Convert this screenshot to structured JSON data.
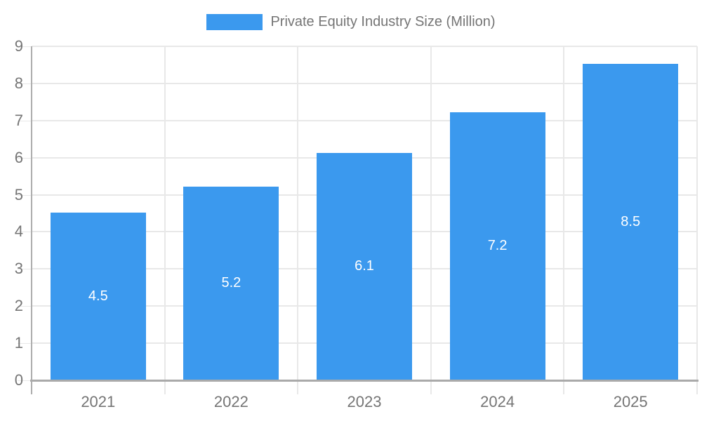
{
  "chart_data": {
    "type": "bar",
    "title": "Private Equity Industry Size (Million)",
    "legend": {
      "position": "top",
      "entries": [
        {
          "label": "Private Equity Industry Size (Million)",
          "color": "#3B99EE"
        }
      ]
    },
    "categories": [
      "2021",
      "2022",
      "2023",
      "2024",
      "2025"
    ],
    "values": [
      4.5,
      5.2,
      6.1,
      7.2,
      8.5
    ],
    "data_labels": [
      "4.5",
      "5.2",
      "6.1",
      "7.2",
      "8.5"
    ],
    "xlabel": "",
    "ylabel": "",
    "ylim": [
      0,
      9
    ],
    "y_ticks": [
      "0",
      "1",
      "2",
      "3",
      "4",
      "5",
      "6",
      "7",
      "8",
      "9"
    ],
    "grid": true,
    "colors": {
      "bar": "#3B99EE",
      "bar_value_text": "#FFFFFF",
      "axis_line": "#ADADAD",
      "baseline": "#AAAAAA",
      "gridline": "#E8E8E8",
      "tick_text": "#757575",
      "legend_text": "#757575",
      "background": "#FFFFFF"
    }
  }
}
